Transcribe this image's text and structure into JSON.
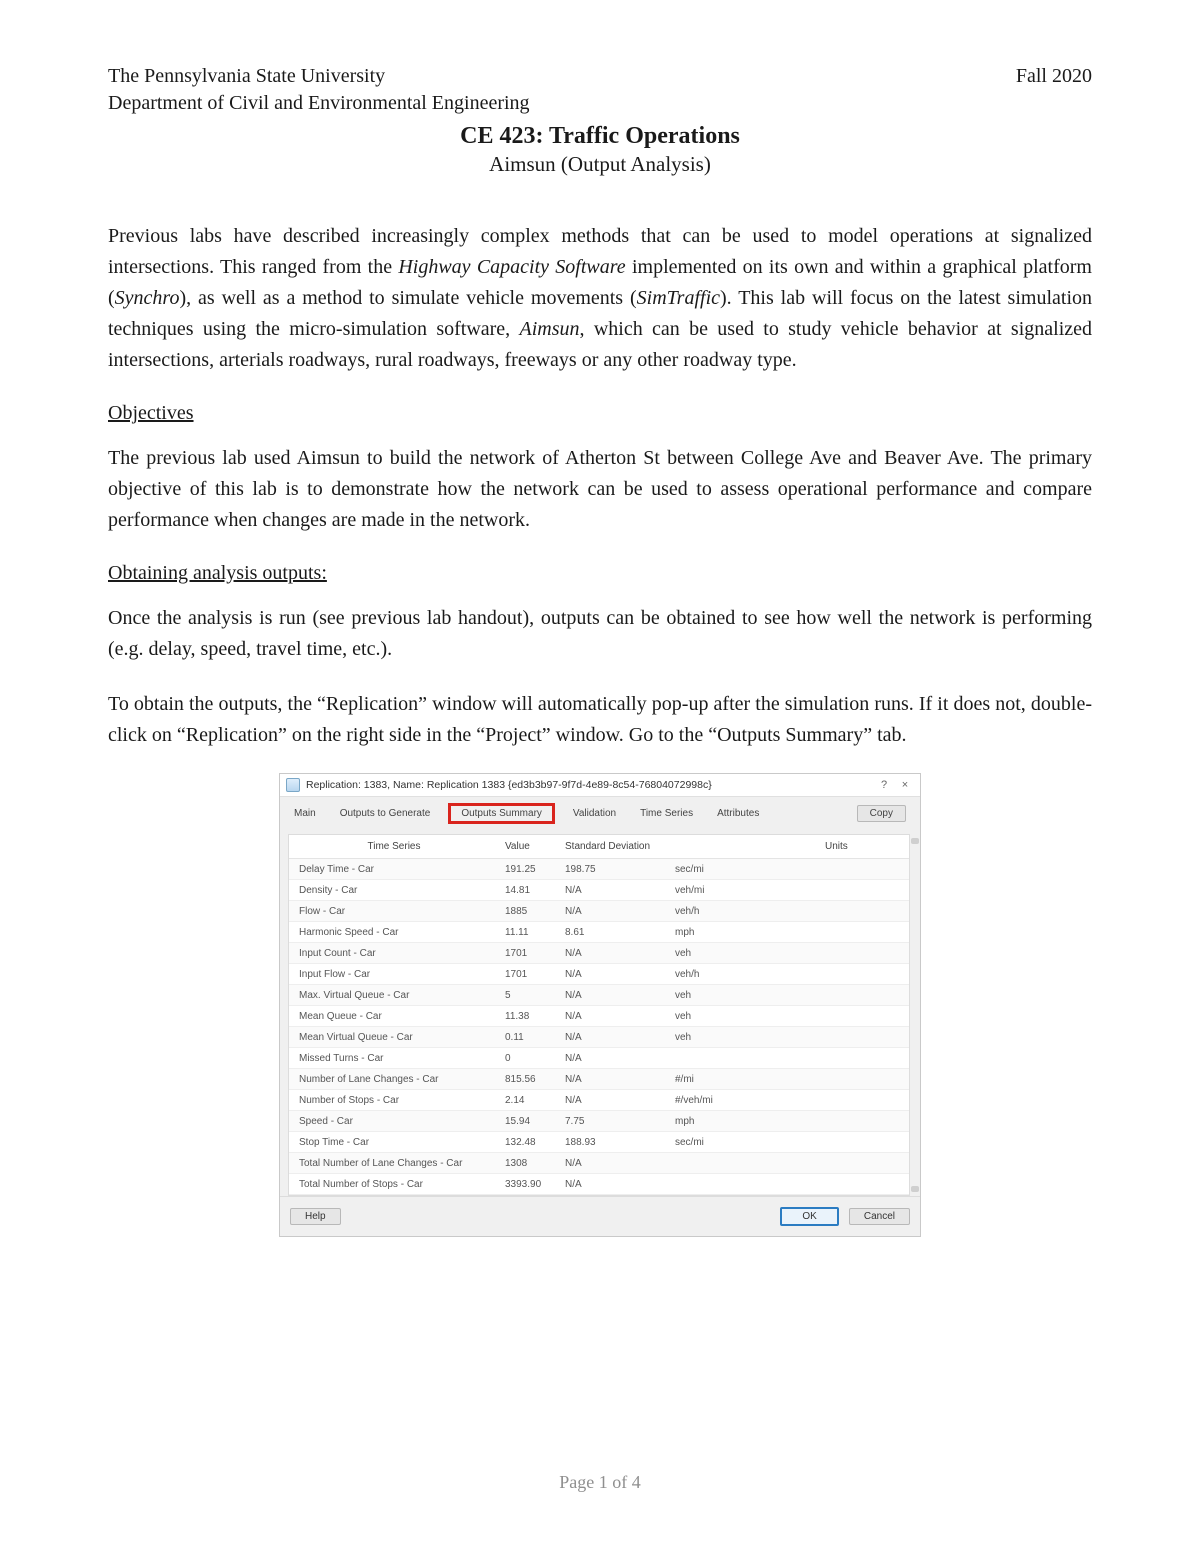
{
  "header": {
    "university": "The Pennsylvania State University",
    "term": "Fall 2020",
    "department": "Department of Civil and Environmental Engineering",
    "course": "CE 423: Traffic Operations",
    "subtitle": "Aimsun (Output Analysis)"
  },
  "intro": {
    "t1": "Previous labs have described increasingly complex methods that can be used to model operations at signalized intersections. This ranged from the ",
    "i1": "Highway Capacity Software",
    "t2": " implemented on its own and within a graphical platform (",
    "i2": "Synchro",
    "t3": "), as well as a method to simulate vehicle movements (",
    "i3": "SimTraffic",
    "t4": "). This lab will focus on the latest simulation techniques using the micro-simulation software, ",
    "i4": "Aimsun",
    "t5": ", which can be used to study vehicle behavior at signalized intersections, arterials roadways, rural roadways, freeways or any other roadway type."
  },
  "sections": {
    "objectives": "Objectives",
    "objectives_body": "The previous lab used Aimsun to build the network of Atherton St between College Ave and Beaver Ave. The primary objective of this lab is to demonstrate how the network can be used to assess operational performance and compare performance when changes are made in the network.",
    "outputs": "Obtaining analysis outputs:",
    "outputs_p1": "Once the analysis is run (see previous lab handout), outputs can be obtained to see how well the network is performing (e.g. delay, speed, travel time, etc.).",
    "outputs_p2": "To obtain the outputs, the “Replication” window will automatically pop-up after the simulation runs. If it does not, double-click on “Replication” on the right side in the “Project” window. Go to the “Outputs Summary” tab."
  },
  "dialog": {
    "title": "Replication: 1383, Name: Replication 1383  {ed3b3b97-9f7d-4e89-8c54-76804072998c}",
    "pin": "?",
    "close": "×",
    "tabs": [
      "Main",
      "Outputs to Generate",
      "Outputs Summary",
      "Validation",
      "Time Series",
      "Attributes"
    ],
    "active_tab_index": 2,
    "highlight_color": "#d9241d",
    "copy": "Copy",
    "columns": [
      "Time Series",
      "Value",
      "Standard Deviation",
      "",
      "Units"
    ],
    "rows": [
      [
        "Delay Time - Car",
        "191.25",
        "198.75",
        "sec/mi",
        ""
      ],
      [
        "Density - Car",
        "14.81",
        "N/A",
        "veh/mi",
        ""
      ],
      [
        "Flow - Car",
        "1885",
        "N/A",
        "veh/h",
        ""
      ],
      [
        "Harmonic Speed - Car",
        "11.11",
        "8.61",
        "mph",
        ""
      ],
      [
        "Input Count - Car",
        "1701",
        "N/A",
        "veh",
        ""
      ],
      [
        "Input Flow - Car",
        "1701",
        "N/A",
        "veh/h",
        ""
      ],
      [
        "Max. Virtual Queue - Car",
        "5",
        "N/A",
        "veh",
        ""
      ],
      [
        "Mean Queue - Car",
        "11.38",
        "N/A",
        "veh",
        ""
      ],
      [
        "Mean Virtual Queue - Car",
        "0.11",
        "N/A",
        "veh",
        ""
      ],
      [
        "Missed Turns - Car",
        "0",
        "N/A",
        "",
        ""
      ],
      [
        "Number of Lane Changes - Car",
        "815.56",
        "N/A",
        "#/mi",
        ""
      ],
      [
        "Number of Stops - Car",
        "2.14",
        "N/A",
        "#/veh/mi",
        ""
      ],
      [
        "Speed - Car",
        "15.94",
        "7.75",
        "mph",
        ""
      ],
      [
        "Stop Time - Car",
        "132.48",
        "188.93",
        "sec/mi",
        ""
      ],
      [
        "Total Number of Lane Changes - Car",
        "1308",
        "N/A",
        "",
        ""
      ],
      [
        "Total Number of Stops - Car",
        "3393.90",
        "N/A",
        "",
        ""
      ]
    ],
    "help": "Help",
    "ok": "OK",
    "cancel": "Cancel"
  },
  "footer": {
    "page": "Page 1 of 4"
  }
}
